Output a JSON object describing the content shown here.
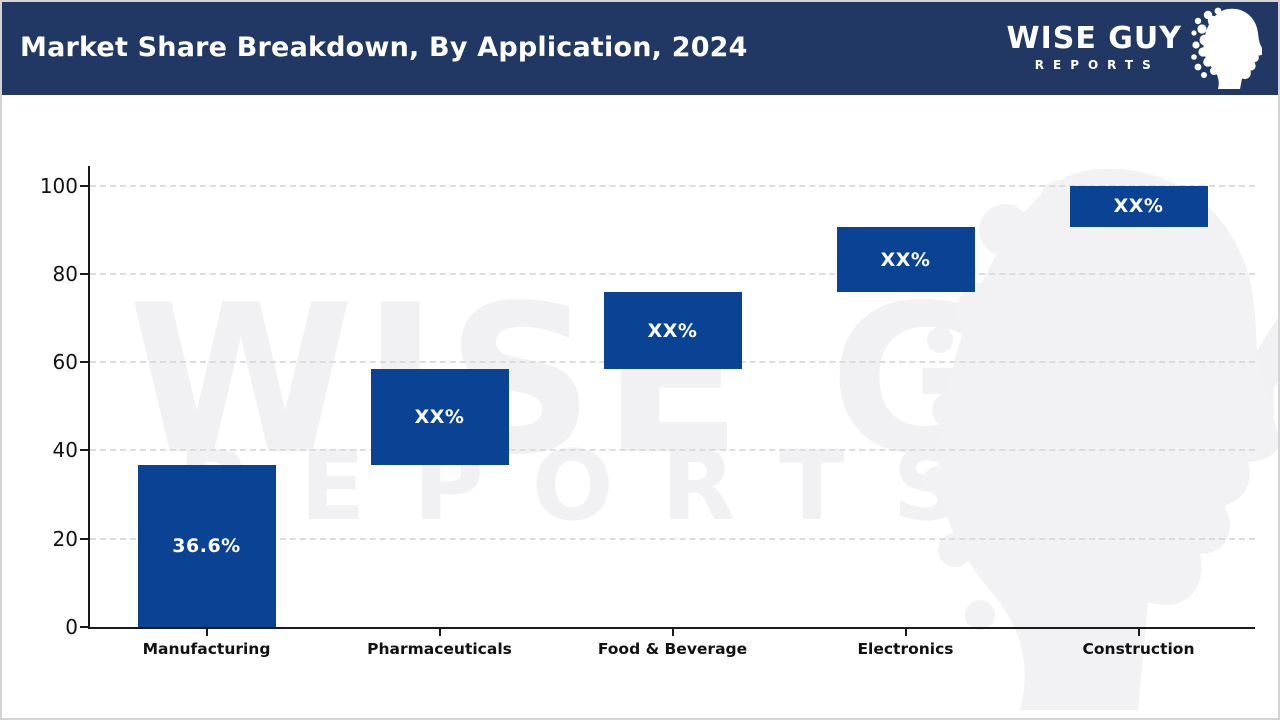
{
  "header": {
    "title": "Market Share Breakdown, By Application, 2024",
    "logo": {
      "line1": "WISE GUY",
      "line2": "REPORTS"
    }
  },
  "watermark": {
    "line1": "WISE GUY",
    "line2": "REPORTS"
  },
  "chart_data": {
    "type": "bar",
    "subtype": "waterfall",
    "title": "Market Share Breakdown, By Application, 2024",
    "categories": [
      "Manufacturing",
      "Pharmaceuticals",
      "Food & Beverage",
      "Electronics",
      "Construction"
    ],
    "segments": [
      {
        "category": "Manufacturing",
        "start": 0,
        "end": 36.6,
        "label": "36.6%"
      },
      {
        "category": "Pharmaceuticals",
        "start": 36.6,
        "end": 58.5,
        "label": "XX%"
      },
      {
        "category": "Food & Beverage",
        "start": 58.5,
        "end": 75.8,
        "label": "XX%"
      },
      {
        "category": "Electronics",
        "start": 75.8,
        "end": 90.7,
        "label": "XX%"
      },
      {
        "category": "Construction",
        "start": 90.7,
        "end": 100,
        "label": "XX%"
      }
    ],
    "yticks": [
      0,
      20,
      40,
      60,
      80,
      100
    ],
    "ylim": [
      0,
      104
    ],
    "xlabel": "",
    "ylabel": "",
    "legend": "none",
    "grid": {
      "horizontal": true,
      "style": "dashed",
      "color": "#dcdcdc"
    },
    "bar_color": "#0a4294",
    "bar_label_color": "#ffffff",
    "axis_color": "#1a1a1a"
  },
  "colors": {
    "header_bg": "#203863",
    "page_bg": "#ffffff",
    "page_border": "#d4d4d4",
    "watermark": "#f1f1f3"
  }
}
